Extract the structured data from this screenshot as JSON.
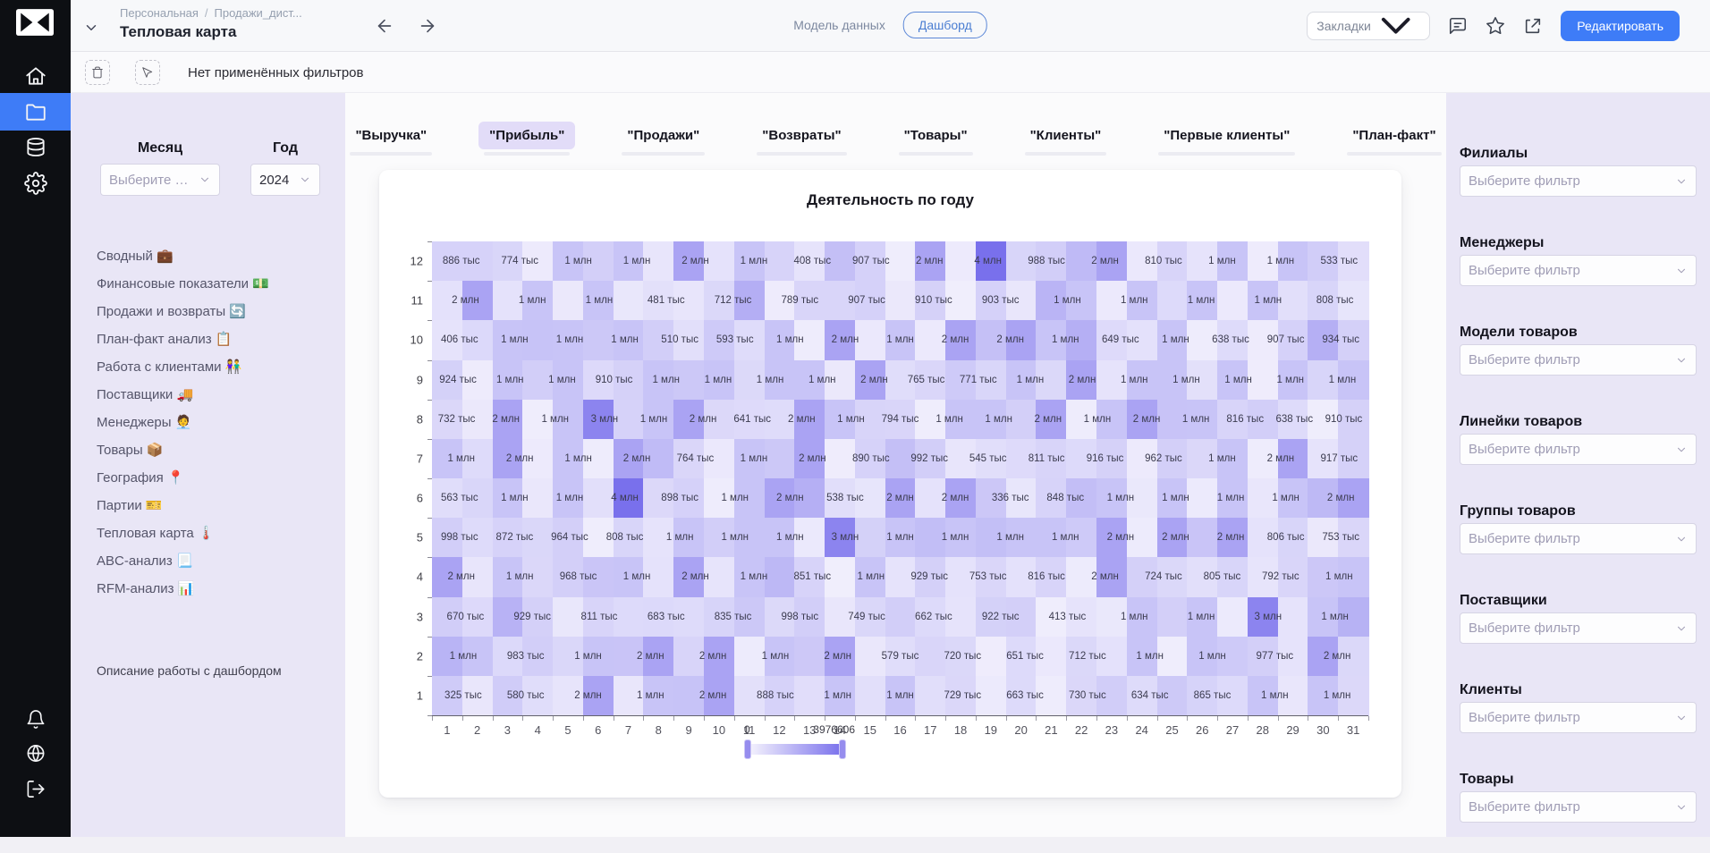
{
  "colors": {
    "accent_blue": "#3e7cf7",
    "panel_bg": "#e9e6f6",
    "rail_bg": "#0d0f13",
    "heat_low": "#f6f4fd",
    "heat_high": "#7970ec",
    "legend_handle": "#968dee"
  },
  "rail": {
    "items": [
      {
        "name": "home",
        "active": false
      },
      {
        "name": "folder",
        "active": true
      },
      {
        "name": "database",
        "active": false
      },
      {
        "name": "gear",
        "active": false
      }
    ],
    "bottom_items": [
      {
        "name": "bell"
      },
      {
        "name": "globe"
      },
      {
        "name": "logout"
      }
    ]
  },
  "header": {
    "breadcrumb": [
      "Персональная",
      "Продажи_дист..."
    ],
    "title": "Тепловая карта",
    "model_link": "Модель данных",
    "dashboard_button": "Дашборд",
    "bookmarks_placeholder": "Закладки",
    "edit_button": "Редактировать"
  },
  "filter_bar": {
    "status": "Нет применённых фильтров"
  },
  "left_panel": {
    "month": {
      "label": "Месяц",
      "placeholder": "Выберите фи..."
    },
    "year": {
      "label": "Год",
      "value": "2024"
    },
    "nav": [
      {
        "label": "Сводный",
        "emoji": "💼"
      },
      {
        "label": "Финансовые показатели",
        "emoji": "💵"
      },
      {
        "label": "Продажи и возвраты",
        "emoji": "🔄"
      },
      {
        "label": "План-факт анализ",
        "emoji": "📋"
      },
      {
        "label": "Работа с клиентами",
        "emoji": "👫"
      },
      {
        "label": "Поставщики",
        "emoji": "🚚"
      },
      {
        "label": "Менеджеры",
        "emoji": "🧑‍💼"
      },
      {
        "label": "Товары",
        "emoji": "📦"
      },
      {
        "label": "География",
        "emoji": "📍"
      },
      {
        "label": "Партии",
        "emoji": "🎫"
      },
      {
        "label": "Тепловая карта",
        "emoji": "🌡️"
      },
      {
        "label": "ABC-анализ",
        "emoji": "📃"
      },
      {
        "label": "RFM-анализ",
        "emoji": "📊"
      }
    ],
    "footer_link": "Описание работы с дашбордом"
  },
  "tabs": [
    {
      "label": "\"Выручка\"",
      "active": false
    },
    {
      "label": "\"Прибыль\"",
      "active": true
    },
    {
      "label": "\"Продажи\"",
      "active": false
    },
    {
      "label": "\"Возвраты\"",
      "active": false
    },
    {
      "label": "\"Товары\"",
      "active": false
    },
    {
      "label": "\"Клиенты\"",
      "active": false
    },
    {
      "label": "\"Первые клиенты\"",
      "active": false
    },
    {
      "label": "\"План-факт\"",
      "active": false
    }
  ],
  "right_panel": {
    "placeholder": "Выберите фильтр",
    "sections": [
      "Филиалы",
      "Менеджеры",
      "Модели товаров",
      "Линейки товаров",
      "Группы товаров",
      "Поставщики",
      "Клиенты",
      "Товары"
    ]
  },
  "chart_data": {
    "type": "heatmap",
    "title": "Деятельность по году",
    "x_labels": [
      1,
      2,
      3,
      4,
      5,
      6,
      7,
      8,
      9,
      10,
      11,
      12,
      13,
      14,
      15,
      16,
      17,
      18,
      19,
      20,
      21,
      22,
      23,
      24,
      25,
      26,
      27,
      28,
      29,
      30,
      31
    ],
    "y_labels": [
      12,
      11,
      10,
      9,
      8,
      7,
      6,
      5,
      4,
      3,
      2,
      1
    ],
    "legend": {
      "min": 0,
      "max": 3976606,
      "min_label": "0",
      "max_label": "3976606"
    },
    "rows": [
      {
        "y": 12,
        "labels": [
          "886 тыс",
          "774 тыс",
          "1 млн",
          "1 млн",
          "2 млн",
          "1 млн",
          "408 тыс",
          "907 тыс",
          "2 млн",
          "4 млн",
          "988 тыс",
          "2 млн",
          "810 тыс",
          "1 млн",
          "1 млн",
          "533 тыс"
        ]
      },
      {
        "y": 11,
        "labels": [
          "2 млн",
          "1 млн",
          "1 млн",
          "481 тыс",
          "712 тыс",
          "789 тыс",
          "907 тыс",
          "910 тыс",
          "903 тыс",
          "1 млн",
          "1 млн",
          "1 млн",
          "1 млн",
          "808 тыс"
        ]
      },
      {
        "y": 10,
        "labels": [
          "406 тыс",
          "1 млн",
          "1 млн",
          "1 млн",
          "510 тыс",
          "593 тыс",
          "1 млн",
          "2 млн",
          "1 млн",
          "2 млн",
          "2 млн",
          "1 млн",
          "649 тыс",
          "1 млн",
          "638 тыс",
          "907 тыс",
          "934 тыс"
        ]
      },
      {
        "y": 9,
        "labels": [
          "924 тыс",
          "1 млн",
          "1 млн",
          "910 тыс",
          "1 млн",
          "1 млн",
          "1 млн",
          "1 млн",
          "2 млн",
          "765 тыс",
          "771 тыс",
          "1 млн",
          "2 млн",
          "1 млн",
          "1 млн",
          "1 млн",
          "1 млн",
          "1 млн"
        ]
      },
      {
        "y": 8,
        "labels": [
          "732 тыс",
          "2 млн",
          "1 млн",
          "3 млн",
          "1 млн",
          "2 млн",
          "641 тыс",
          "2 млн",
          "1 млн",
          "794 тыс",
          "1 млн",
          "1 млн",
          "2 млн",
          "1 млн",
          "2 млн",
          "1 млн",
          "816 тыс",
          "638 тыс",
          "910 тыс"
        ]
      },
      {
        "y": 7,
        "labels": [
          "1 млн",
          "2 млн",
          "1 млн",
          "2 млн",
          "764 тыс",
          "1 млн",
          "2 млн",
          "890 тыс",
          "992 тыс",
          "545 тыс",
          "811 тыс",
          "916 тыс",
          "962 тыс",
          "1 млн",
          "2 млн",
          "917 тыс"
        ]
      },
      {
        "y": 6,
        "labels": [
          "563 тыс",
          "1 млн",
          "1 млн",
          "4 млн",
          "898 тыс",
          "1 млн",
          "2 млн",
          "538 тыс",
          "2 млн",
          "2 млн",
          "336 тыс",
          "848 тыс",
          "1 млн",
          "1 млн",
          "1 млн",
          "1 млн",
          "2 млн"
        ]
      },
      {
        "y": 5,
        "labels": [
          "998 тыс",
          "872 тыс",
          "964 тыс",
          "808 тыс",
          "1 млн",
          "1 млн",
          "1 млн",
          "3 млн",
          "1 млн",
          "1 млн",
          "1 млн",
          "1 млн",
          "2 млн",
          "2 млн",
          "2 млн",
          "806 тыс",
          "753 тыс"
        ]
      },
      {
        "y": 4,
        "labels": [
          "2 млн",
          "1 млн",
          "968 тыс",
          "1 млн",
          "2 млн",
          "1 млн",
          "851 тыс",
          "1 млн",
          "929 тыс",
          "753 тыс",
          "816 тыс",
          "2 млн",
          "724 тыс",
          "805 тыс",
          "792 тыс",
          "1 млн"
        ]
      },
      {
        "y": 3,
        "labels": [
          "670 тыс",
          "929 тыс",
          "811 тыс",
          "683 тыс",
          "835 тыс",
          "998 тыс",
          "749 тыс",
          "662 тыс",
          "922 тыс",
          "413 тыс",
          "1 млн",
          "1 млн",
          "3 млн",
          "1 млн"
        ]
      },
      {
        "y": 2,
        "labels": [
          "1 млн",
          "983 тыс",
          "1 млн",
          "2 млн",
          "2 млн",
          "1 млн",
          "2 млн",
          "579 тыс",
          "720 тыс",
          "651 тыс",
          "712 тыс",
          "1 млн",
          "1 млн",
          "977 тыс",
          "2 млн"
        ]
      },
      {
        "y": 1,
        "labels": [
          "325 тыс",
          "580 тыс",
          "2 млн",
          "1 млн",
          "2 млн",
          "888 тыс",
          "1 млн",
          "1 млн",
          "729 тыс",
          "663 тыс",
          "730 тыс",
          "634 тыс",
          "865 тыс",
          "1 млн",
          "1 млн"
        ]
      }
    ]
  }
}
